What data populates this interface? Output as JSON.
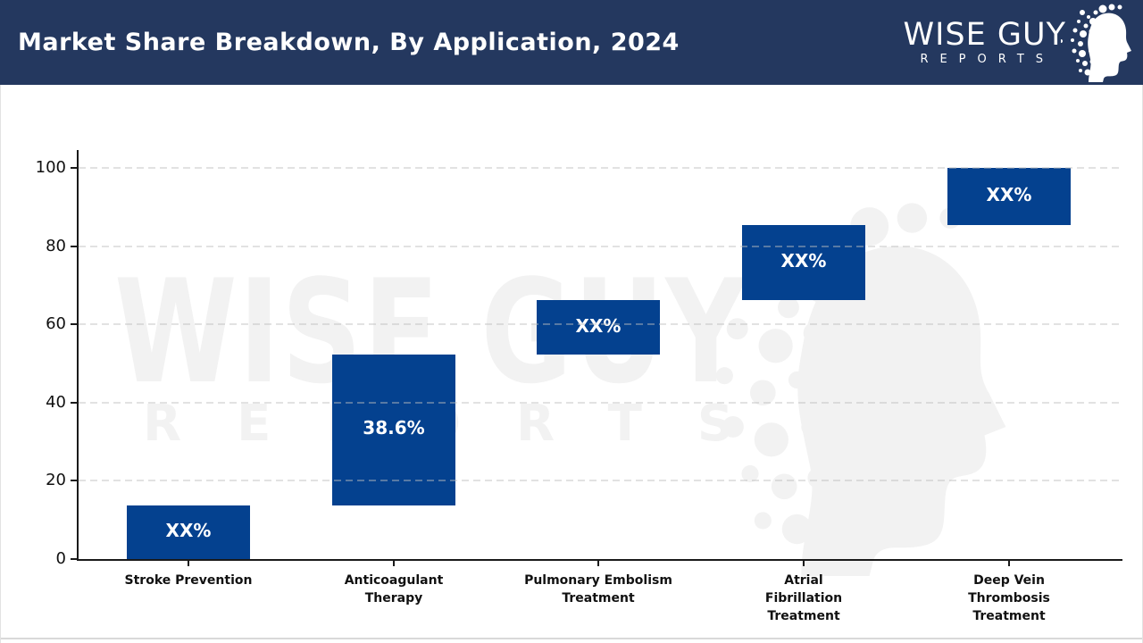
{
  "header": {
    "title": "Market Share Breakdown, By Application, 2024",
    "logo_line1": "WISE GUY",
    "logo_line2": "REPORTS"
  },
  "watermark": {
    "line1": "WISE GUY",
    "line2": "REPORTS"
  },
  "colors": {
    "header_bg": "#24385f",
    "bar": "#04418f",
    "bar_label": "#ffffff",
    "axis": "#1a1a1a",
    "grid": "#bebebe",
    "watermark": "#f2f2f2",
    "tick_label": "#111111"
  },
  "chart_data": {
    "type": "bar",
    "subtype": "floating-waterfall",
    "title": "Market Share Breakdown, By Application, 2024",
    "xlabel": "",
    "ylabel": "",
    "ylim": [
      0,
      100
    ],
    "grid": "dashed-horizontal",
    "y_ticks": [
      0,
      20,
      40,
      60,
      80,
      100
    ],
    "categories": [
      [
        "Stroke Prevention"
      ],
      [
        "Anticoagulant",
        "Therapy"
      ],
      [
        "Pulmonary Embolism",
        "Treatment"
      ],
      [
        "Atrial",
        "Fibrillation",
        "Treatment"
      ],
      [
        "Deep Vein",
        "Thrombosis",
        "Treatment"
      ]
    ],
    "segments": [
      {
        "start": 0,
        "end": 13.7,
        "value": 13.7,
        "label": "XX%"
      },
      {
        "start": 13.7,
        "end": 52.3,
        "value": 38.6,
        "label": "38.6%"
      },
      {
        "start": 52.3,
        "end": 66.1,
        "value": 13.8,
        "label": "XX%"
      },
      {
        "start": 66.1,
        "end": 85.3,
        "value": 19.2,
        "label": "XX%"
      },
      {
        "start": 85.3,
        "end": 100,
        "value": 14.7,
        "label": "XX%"
      }
    ]
  }
}
